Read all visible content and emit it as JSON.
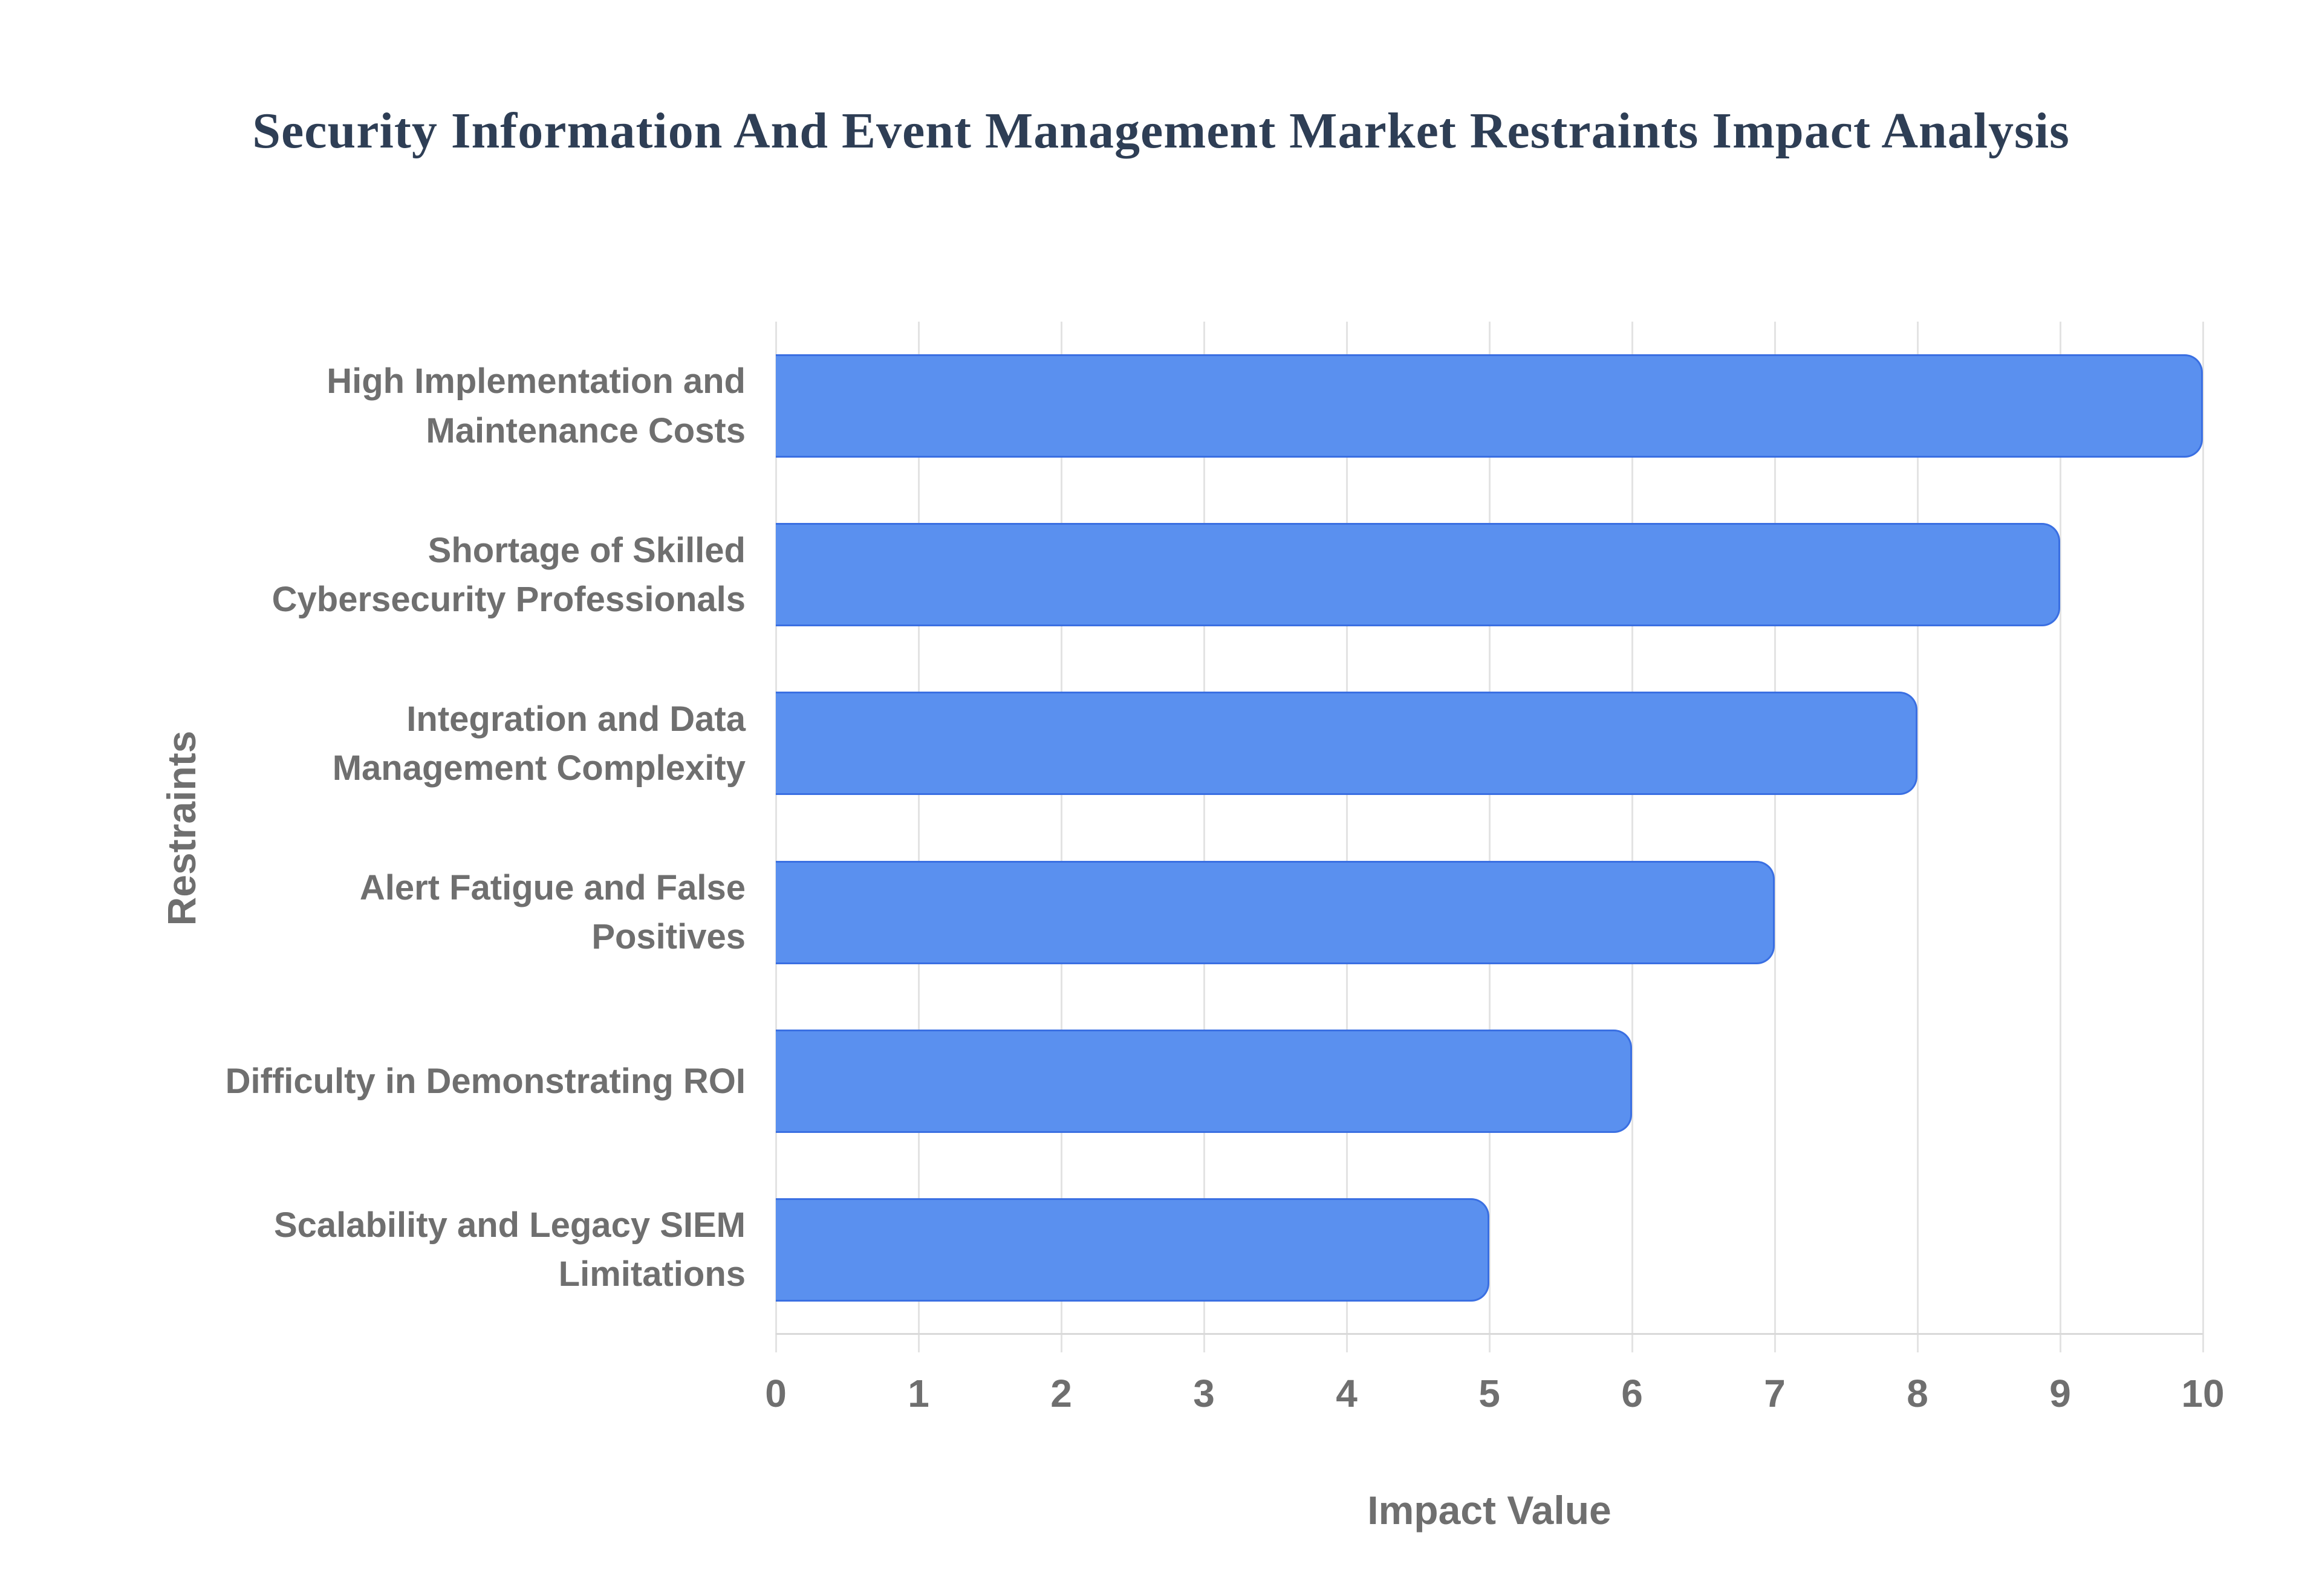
{
  "chart_data": {
    "type": "bar",
    "orientation": "horizontal",
    "title": "Security Information And Event Management Market Restraints Impact Analysis",
    "categories": [
      "High Implementation and Maintenance Costs",
      "Shortage of Skilled Cybersecurity Professionals",
      "Integration and Data Management Complexity",
      "Alert Fatigue and False Positives",
      "Difficulty in Demonstrating ROI",
      "Scalability and Legacy SIEM Limitations"
    ],
    "values": [
      10,
      9,
      8,
      7,
      6,
      5
    ],
    "xlabel": "Impact Value",
    "ylabel": "Restraints",
    "xlim": [
      0,
      10
    ],
    "xticks": [
      0,
      1,
      2,
      3,
      4,
      5,
      6,
      7,
      8,
      9,
      10
    ],
    "grid": true,
    "legend": "none",
    "colors": {
      "background": "#ffffff",
      "title": "#2e3e55",
      "axis_text": "#6f6f6f",
      "bar_fill": "#5a90ef",
      "bar_stroke": "#3a6fe2",
      "gridline": "#e3e3e3",
      "axis_line": "#d9d9d9"
    }
  }
}
